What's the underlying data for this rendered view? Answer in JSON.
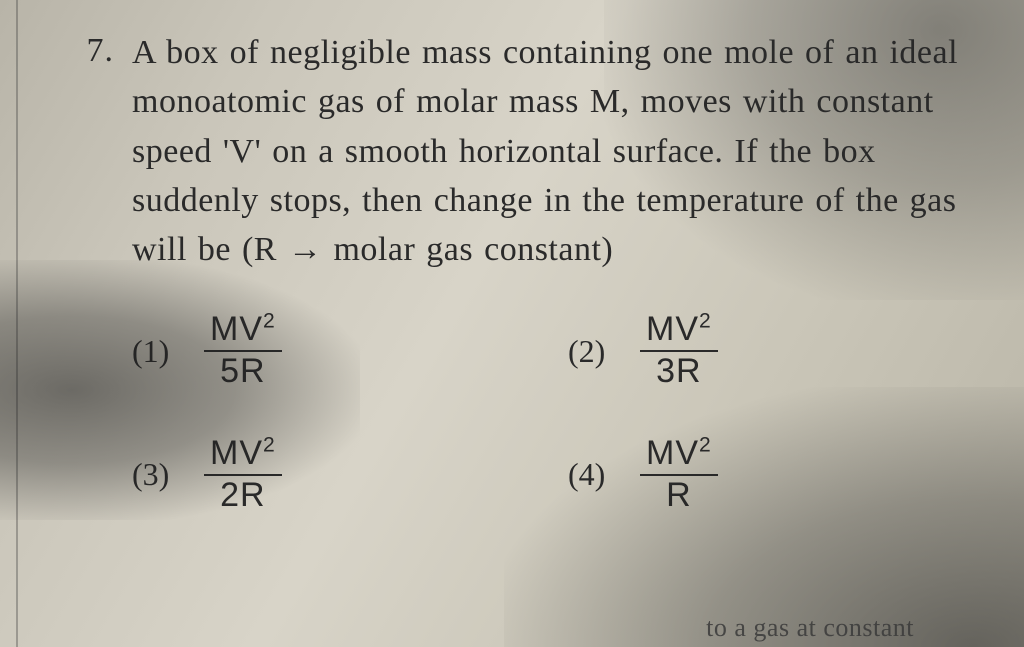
{
  "question": {
    "number": "7.",
    "stem": "A box of negligible mass containing one mole of an ideal monoatomic gas of molar mass M, moves with constant speed 'V' on a smooth horizontal surface. If the box suddenly stops, then change in the temperature of the gas will be (R → molar gas constant)"
  },
  "options": {
    "o1": {
      "label": "(1)",
      "num": "MV",
      "exp": "2",
      "den": "5R"
    },
    "o2": {
      "label": "(2)",
      "num": "MV",
      "exp": "2",
      "den": "3R"
    },
    "o3": {
      "label": "(3)",
      "num": "MV",
      "exp": "2",
      "den": "2R"
    },
    "o4": {
      "label": "(4)",
      "num": "MV",
      "exp": "2",
      "den": "R"
    }
  },
  "cutoff_text": "to a gas at constant"
}
